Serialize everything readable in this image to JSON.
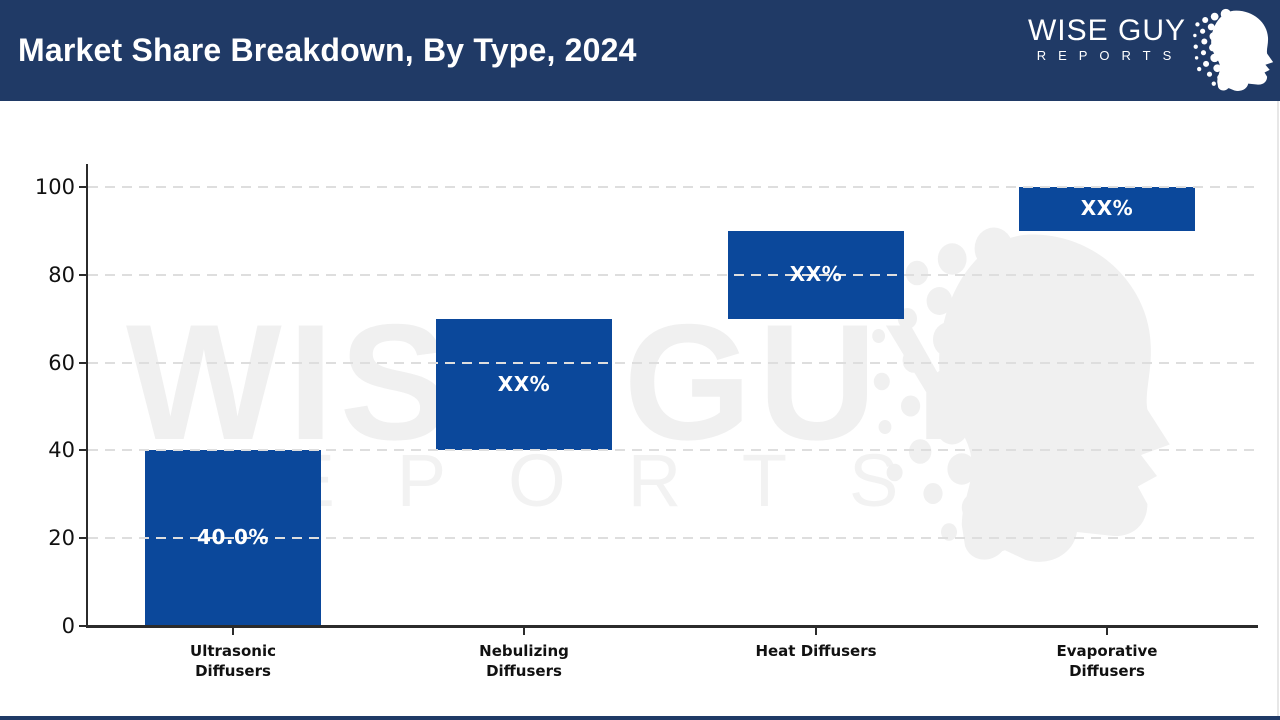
{
  "header": {
    "title": "Market Share Breakdown, By Type, 2024",
    "logo": {
      "name": "WISE GUY",
      "sub": "REPORTS"
    }
  },
  "watermark": {
    "name": "WISE GUY",
    "sub": "REPORTS"
  },
  "colors": {
    "header_bg": "#203a66",
    "bar": "#0b489b",
    "grid": "#dedede",
    "axis": "#2b2b2b",
    "value_label": "#ffffff",
    "watermark": "#f0f0f0"
  },
  "chart_data": {
    "type": "bar",
    "subtype": "waterfall",
    "title": "Market Share Breakdown, By Type, 2024",
    "xlabel": "",
    "ylabel": "",
    "categories": [
      "Ultrasonic\nDiffusers",
      "Nebulizing\nDiffusers",
      "Heat Diffusers",
      "Evaporative\nDiffusers"
    ],
    "segments": [
      {
        "category": "Ultrasonic Diffusers",
        "from": 0,
        "to": 40,
        "label": "40.0%"
      },
      {
        "category": "Nebulizing Diffusers",
        "from": 40,
        "to": 70,
        "label": "XX%"
      },
      {
        "category": "Heat Diffusers",
        "from": 70,
        "to": 90,
        "label": "XX%"
      },
      {
        "category": "Evaporative Diffusers",
        "from": 90,
        "to": 100,
        "label": "XX%"
      }
    ],
    "yticks": [
      0,
      20,
      40,
      60,
      80,
      100
    ],
    "ylim": [
      0,
      105
    ],
    "grid": "horizontal-dashed",
    "legend": "none",
    "bar_color": "#0b489b"
  }
}
